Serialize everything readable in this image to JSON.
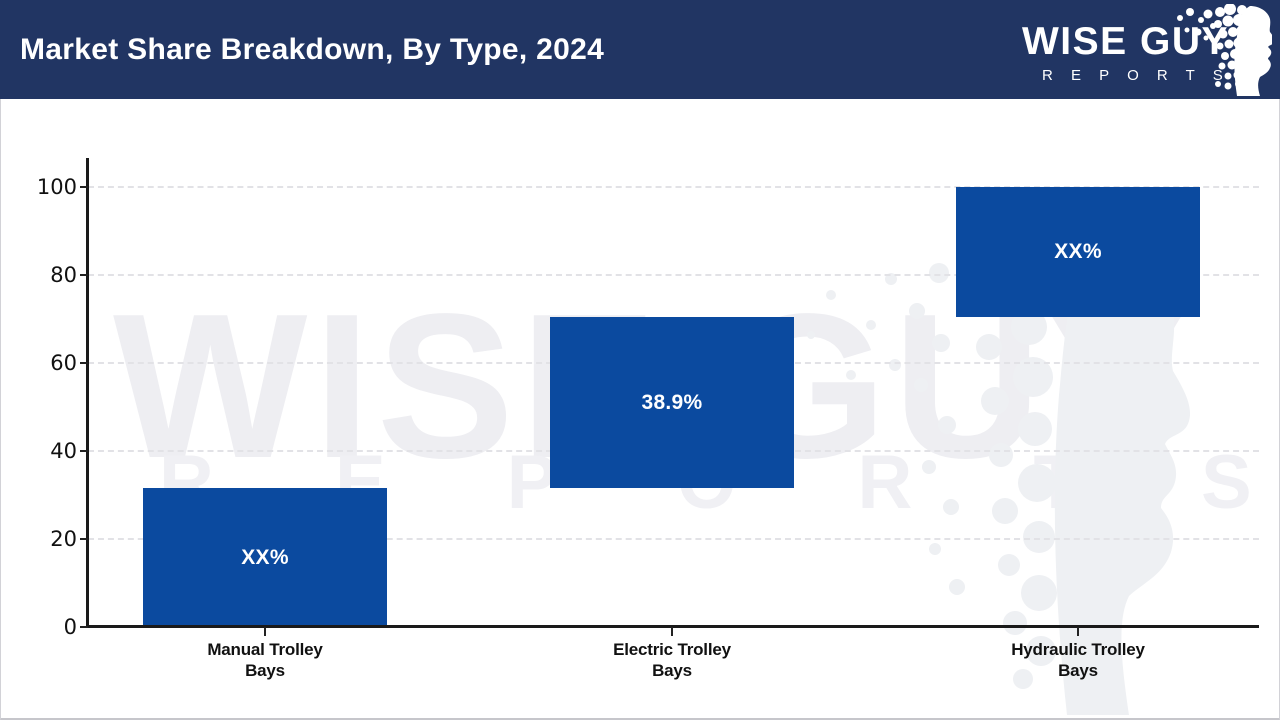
{
  "header": {
    "title": "Market Share Breakdown, By Type, 2024",
    "logo": {
      "brand_line1": "WISE GUY",
      "brand_line2": "R E P O R T S"
    }
  },
  "watermark": {
    "line1": "WISE GUY",
    "line2": "R E P O R T S"
  },
  "colors": {
    "header_bg": "#213563",
    "bar": "#0b4a9f",
    "bar_label_text": "#ffffff",
    "grid": "#e2e2e6",
    "axis": "#1a1a1a",
    "tick_label": "#111111",
    "watermark": "#eeeef2",
    "canvas_border": "#c9c9ce"
  },
  "chart_data": {
    "type": "bar",
    "subtype": "waterfall-stacked-percentage",
    "title": "Market Share Breakdown, By Type, 2024",
    "categories": [
      "Manual Trolley Bays",
      "Electric Trolley Bays",
      "Hydraulic Trolley Bays"
    ],
    "segments": [
      {
        "category": "Manual Trolley Bays",
        "start": 0,
        "end": 31.5,
        "value_label": "XX%"
      },
      {
        "category": "Electric Trolley Bays",
        "start": 31.5,
        "end": 70.4,
        "value_label": "38.9%"
      },
      {
        "category": "Hydraulic Trolley Bays",
        "start": 70.4,
        "end": 100,
        "value_label": "XX%"
      }
    ],
    "ylabel": "",
    "xlabel": "",
    "yticks": [
      0,
      20,
      40,
      60,
      80,
      100
    ],
    "ylim": [
      0,
      105
    ],
    "grid": "horizontal-dashed",
    "legend_position": "none"
  }
}
